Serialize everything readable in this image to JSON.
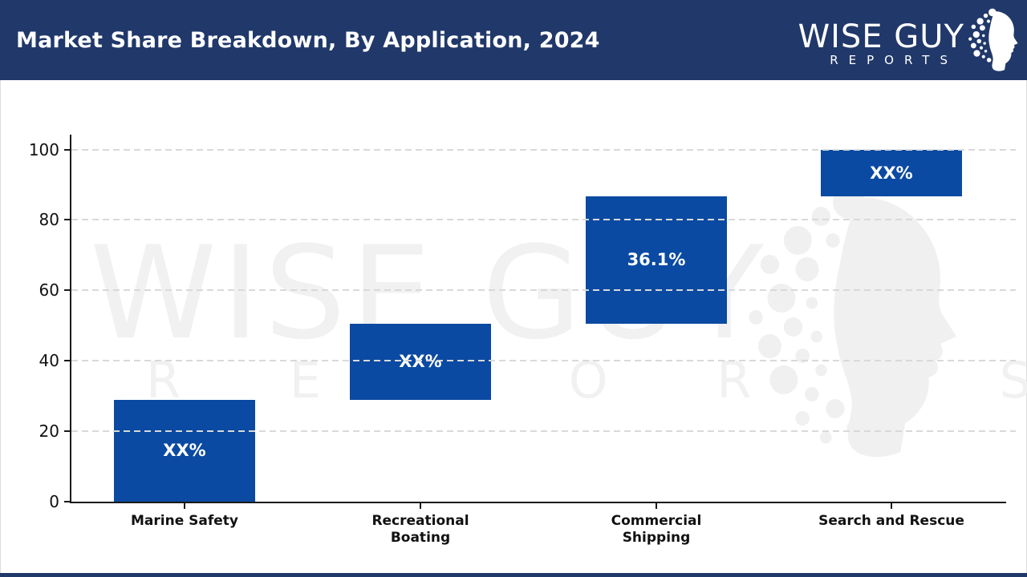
{
  "header": {
    "title": "Market Share Breakdown, By Application, 2024",
    "logo": {
      "line1": "WISE GUY",
      "line2": "REPORTS"
    }
  },
  "watermark": {
    "line1": "WISE GUY",
    "line2": "R E P O R T S"
  },
  "colors": {
    "header_bg": "#21386A",
    "bar_fill": "#0B4AA2",
    "bar_label_text": "#FFFFFF",
    "axis": "#1A1A1A",
    "gridline": "#D9D9D9",
    "watermark": "#F1F1F1",
    "background": "#FFFFFF"
  },
  "chart_data": {
    "type": "bar",
    "subtype": "floating-waterfall",
    "title": "Market Share Breakdown, By Application, 2024",
    "categories": [
      "Marine Safety",
      "Recreational Boating",
      "Commercial Shipping",
      "Search and Rescue"
    ],
    "tick_labels": [
      "Marine Safety",
      "Recreational\nBoating",
      "Commercial\nShipping",
      "Search and Rescue"
    ],
    "segments": [
      {
        "category": "Marine Safety",
        "start": 0,
        "end": 29,
        "label": "XX%"
      },
      {
        "category": "Recreational Boating",
        "start": 29,
        "end": 50.5,
        "label": "XX%"
      },
      {
        "category": "Commercial Shipping",
        "start": 50.6,
        "end": 86.7,
        "label": "36.1%",
        "value": 36.1
      },
      {
        "category": "Search and Rescue",
        "start": 86.8,
        "end": 100,
        "label": "XX%"
      }
    ],
    "xlabel": "",
    "ylabel": "",
    "ylim": [
      0,
      104
    ],
    "yticks": [
      0,
      20,
      40,
      60,
      80,
      100
    ],
    "grid": "horizontal-dashed",
    "legend": "none"
  }
}
